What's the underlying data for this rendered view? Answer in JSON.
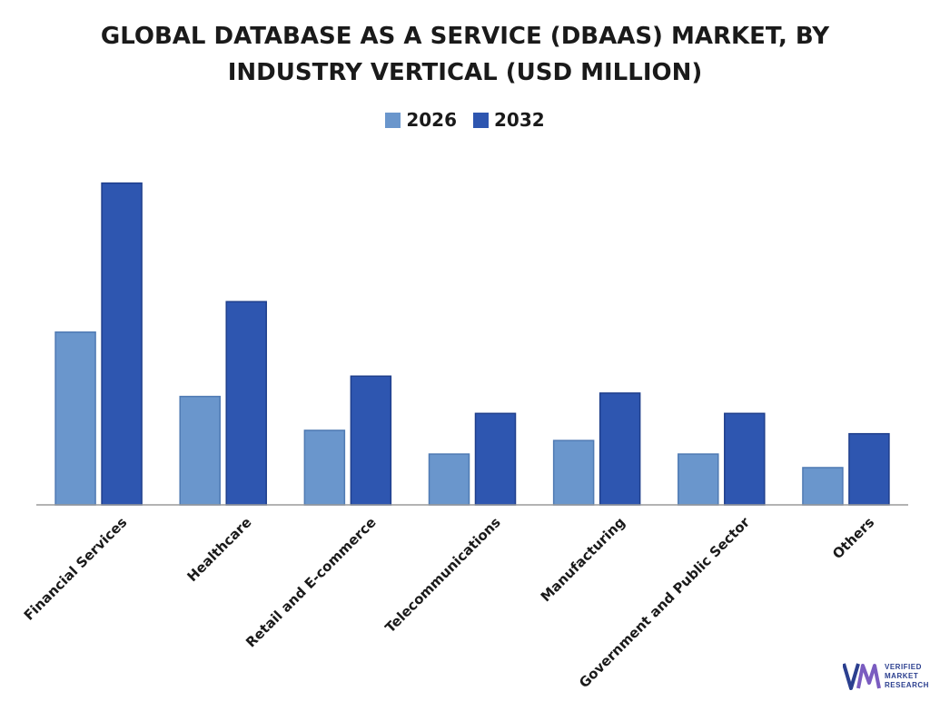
{
  "chart_data": {
    "type": "bar",
    "title_lines": [
      "GLOBAL DATABASE AS A SERVICE (DBAAS) MARKET, BY",
      "INDUSTRY VERTICAL (USD MILLION)"
    ],
    "categories": [
      "Financial Services",
      "Healthcare",
      "Retail and E-commerce",
      "Telecommunications",
      "Manufacturing",
      "Government and Public Sector",
      "Others"
    ],
    "series": [
      {
        "name": "2026",
        "color": "#6a96cc",
        "values": [
          51,
          32,
          22,
          15,
          19,
          15,
          11
        ]
      },
      {
        "name": "2032",
        "color": "#2e56b0",
        "values": [
          95,
          60,
          38,
          27,
          33,
          27,
          21
        ]
      }
    ],
    "ylim": [
      0,
      100
    ],
    "grid": false,
    "legend_position": "top-center",
    "y_axis_visible": false
  },
  "logo": {
    "mark": "VM",
    "lines": [
      "VERIFIED",
      "MARKET",
      "RESEARCH"
    ],
    "color": "#2b3f8f"
  }
}
